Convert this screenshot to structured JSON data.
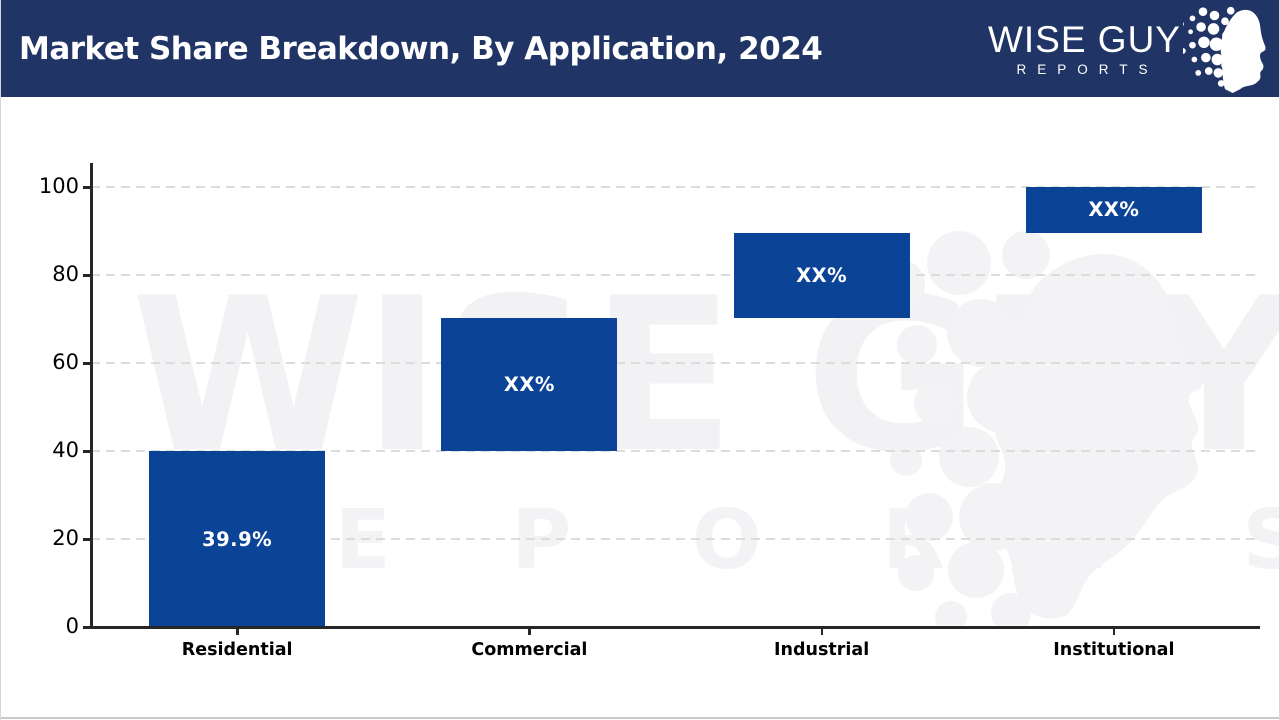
{
  "header": {
    "title": "Market Share Breakdown, By Application, 2024",
    "background": "#203565",
    "logo": {
      "line1": "WISE GUY",
      "line2": "REPORTS"
    }
  },
  "watermark": {
    "line1": "WISE GUY",
    "line2": "REPORTS"
  },
  "chart_data": {
    "type": "bar",
    "subtype": "waterfall",
    "title": "Market Share Breakdown, By Application, 2024",
    "categories": [
      "Residential",
      "Commercial",
      "Industrial",
      "Institutional"
    ],
    "segments": [
      {
        "category": "Residential",
        "start": 0,
        "end": 39.9,
        "label": "39.9%"
      },
      {
        "category": "Commercial",
        "start": 39.9,
        "end": 70.3,
        "label": "XX%"
      },
      {
        "category": "Industrial",
        "start": 70.3,
        "end": 89.6,
        "label": "XX%"
      },
      {
        "category": "Institutional",
        "start": 89.6,
        "end": 100,
        "label": "XX%"
      }
    ],
    "xlabel": "",
    "ylabel": "",
    "ylim": [
      0,
      105
    ],
    "yticks": [
      0,
      20,
      40,
      60,
      80,
      100
    ],
    "grid": "horizontal-dashed",
    "legend": "none",
    "bar_color": "#0B4397",
    "bar_label_color": "#ffffff",
    "axis_color": "#262626",
    "gridline_color": "#dcdcdc"
  }
}
